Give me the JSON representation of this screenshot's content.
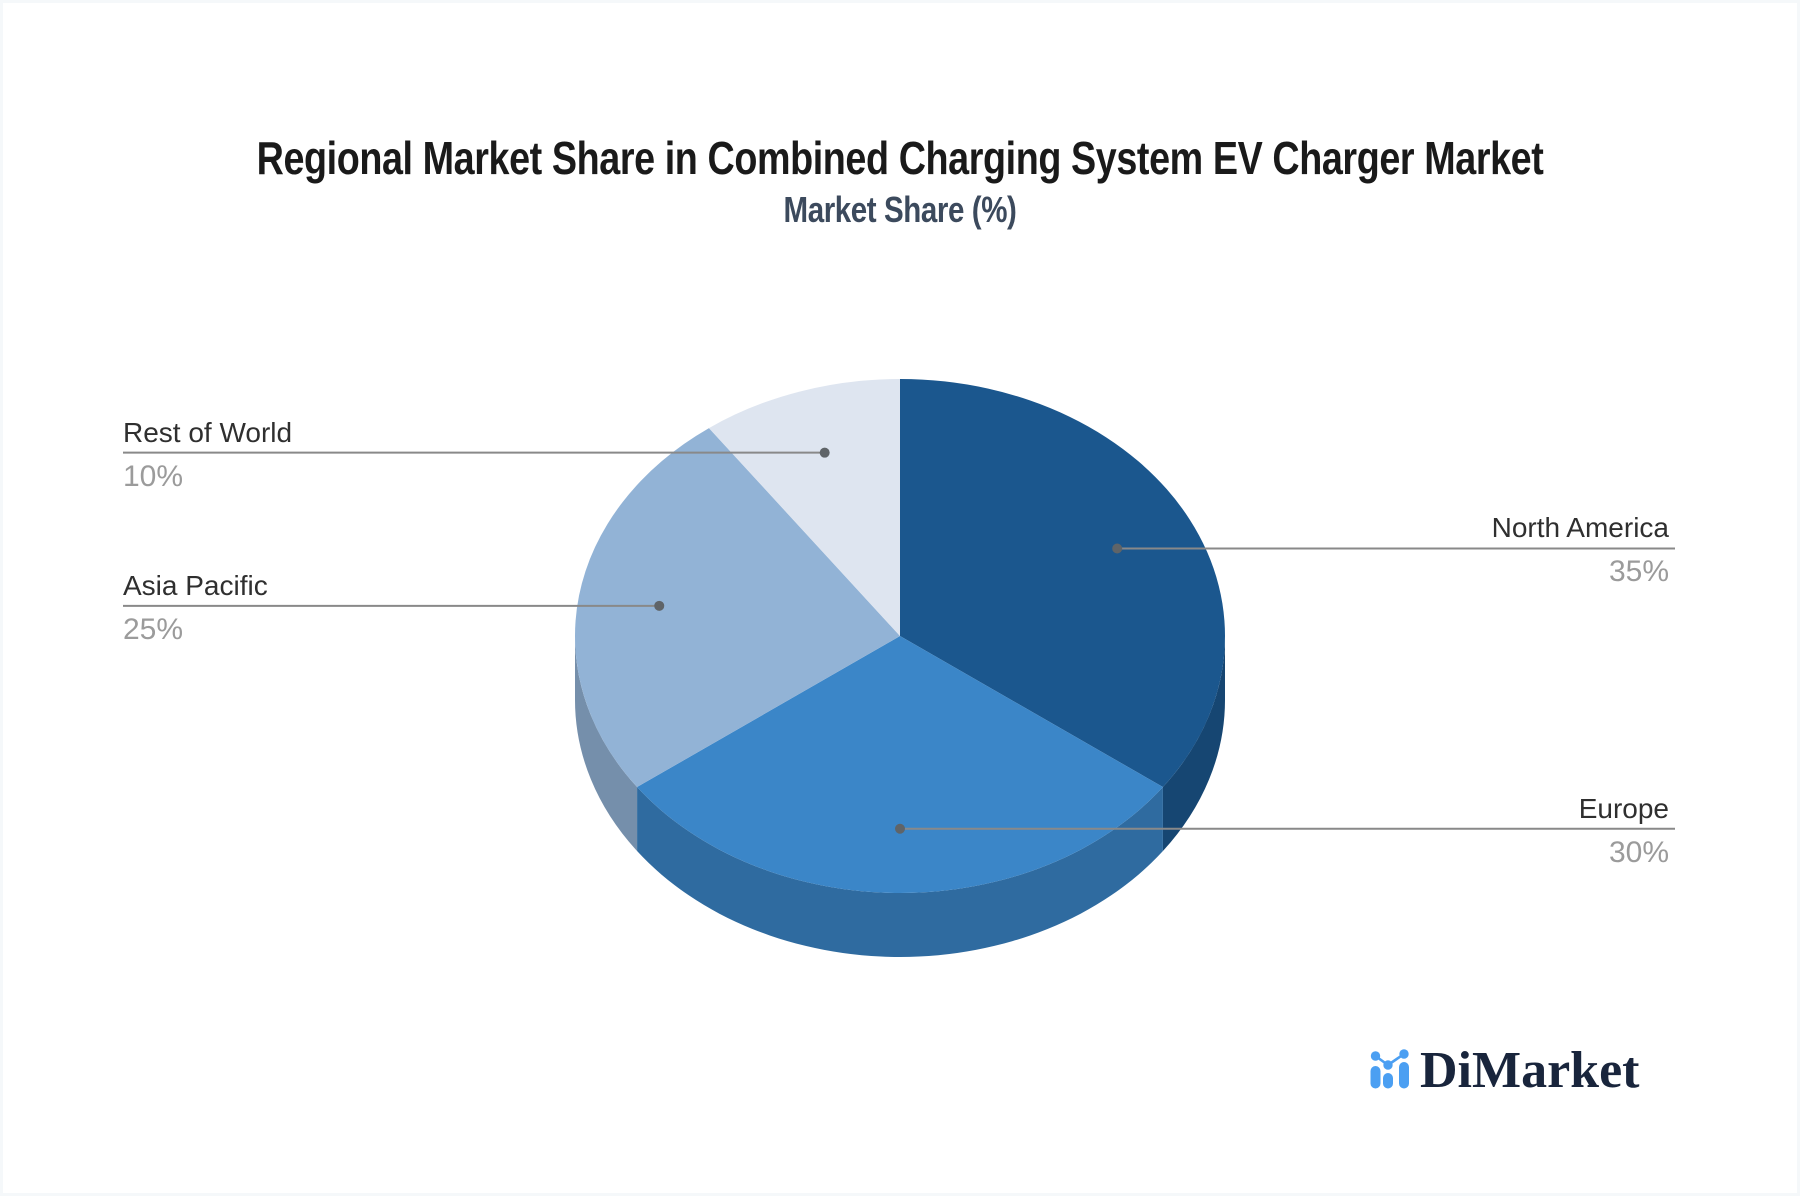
{
  "page": {
    "background_color": "#ffffff",
    "border_color": "#f5f8fa"
  },
  "header": {
    "title": "Regional Market Share in Combined Charging System EV Charger Market",
    "subtitle": "Market Share (%)"
  },
  "chart_data": {
    "type": "pie",
    "style": "3d",
    "title": "Regional Market Share in Combined Charging System EV Charger Market",
    "subtitle": "Market Share (%)",
    "unit": "%",
    "start_angle": "top",
    "direction": "clockwise",
    "slices": [
      {
        "name": "North America",
        "value": 35,
        "value_label": "35%",
        "color": "#1b578e",
        "label_side": "right"
      },
      {
        "name": "Europe",
        "value": 30,
        "value_label": "30%",
        "color": "#3b86c8",
        "label_side": "right"
      },
      {
        "name": "Asia Pacific",
        "value": 25,
        "value_label": "25%",
        "color": "#92b3d6",
        "label_side": "left"
      },
      {
        "name": "Rest of World",
        "value": 10,
        "value_label": "10%",
        "color": "#dee5f0",
        "label_side": "left"
      }
    ],
    "label_style": {
      "name_color": "#2f2f2f",
      "value_color": "#9b9b9b",
      "line_color": "#898989",
      "dot_color": "#5f6468"
    }
  },
  "branding": {
    "logo_text": "DiMarket",
    "logo_icon": "bar-line-chart-icon",
    "logo_icon_color": "#4b9ff2",
    "logo_text_color": "#19253c"
  }
}
